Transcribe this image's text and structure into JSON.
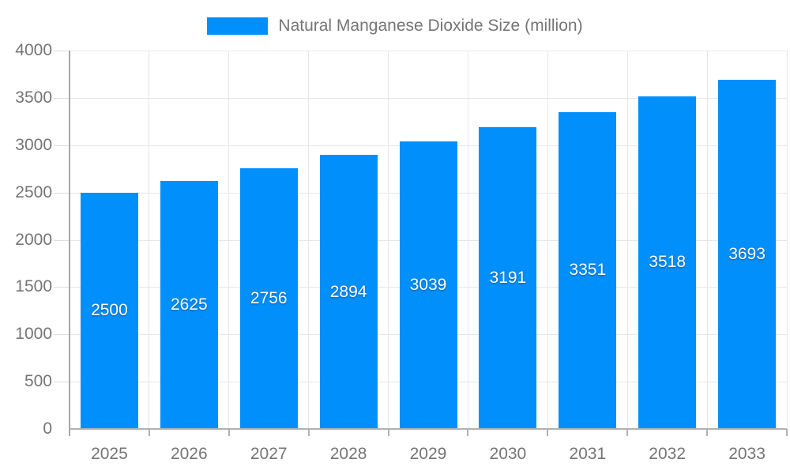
{
  "chart_data": {
    "type": "bar",
    "legend": "Natural Manganese Dioxide Size (million)",
    "legend_position": "top",
    "categories": [
      "2025",
      "2026",
      "2027",
      "2028",
      "2029",
      "2030",
      "2031",
      "2032",
      "2033"
    ],
    "values": [
      2500,
      2625,
      2756,
      2894,
      3039,
      3191,
      3351,
      3518,
      3693
    ],
    "title": "",
    "xlabel": "",
    "ylabel": "",
    "ylim": [
      0,
      4000
    ],
    "ytick_step": 500,
    "ytick_labels": [
      "0",
      "500",
      "1000",
      "1500",
      "2000",
      "2500",
      "3000",
      "3500",
      "4000"
    ],
    "grid": true,
    "data_labels": "white, centered inside bars",
    "colors": {
      "bar": "#008FFB",
      "axis_text": "#757575",
      "grid_line": "#e7e7e7",
      "axis_line": "#b1b1b1",
      "data_label_text": "#ffffff",
      "background": "#ffffff"
    }
  }
}
